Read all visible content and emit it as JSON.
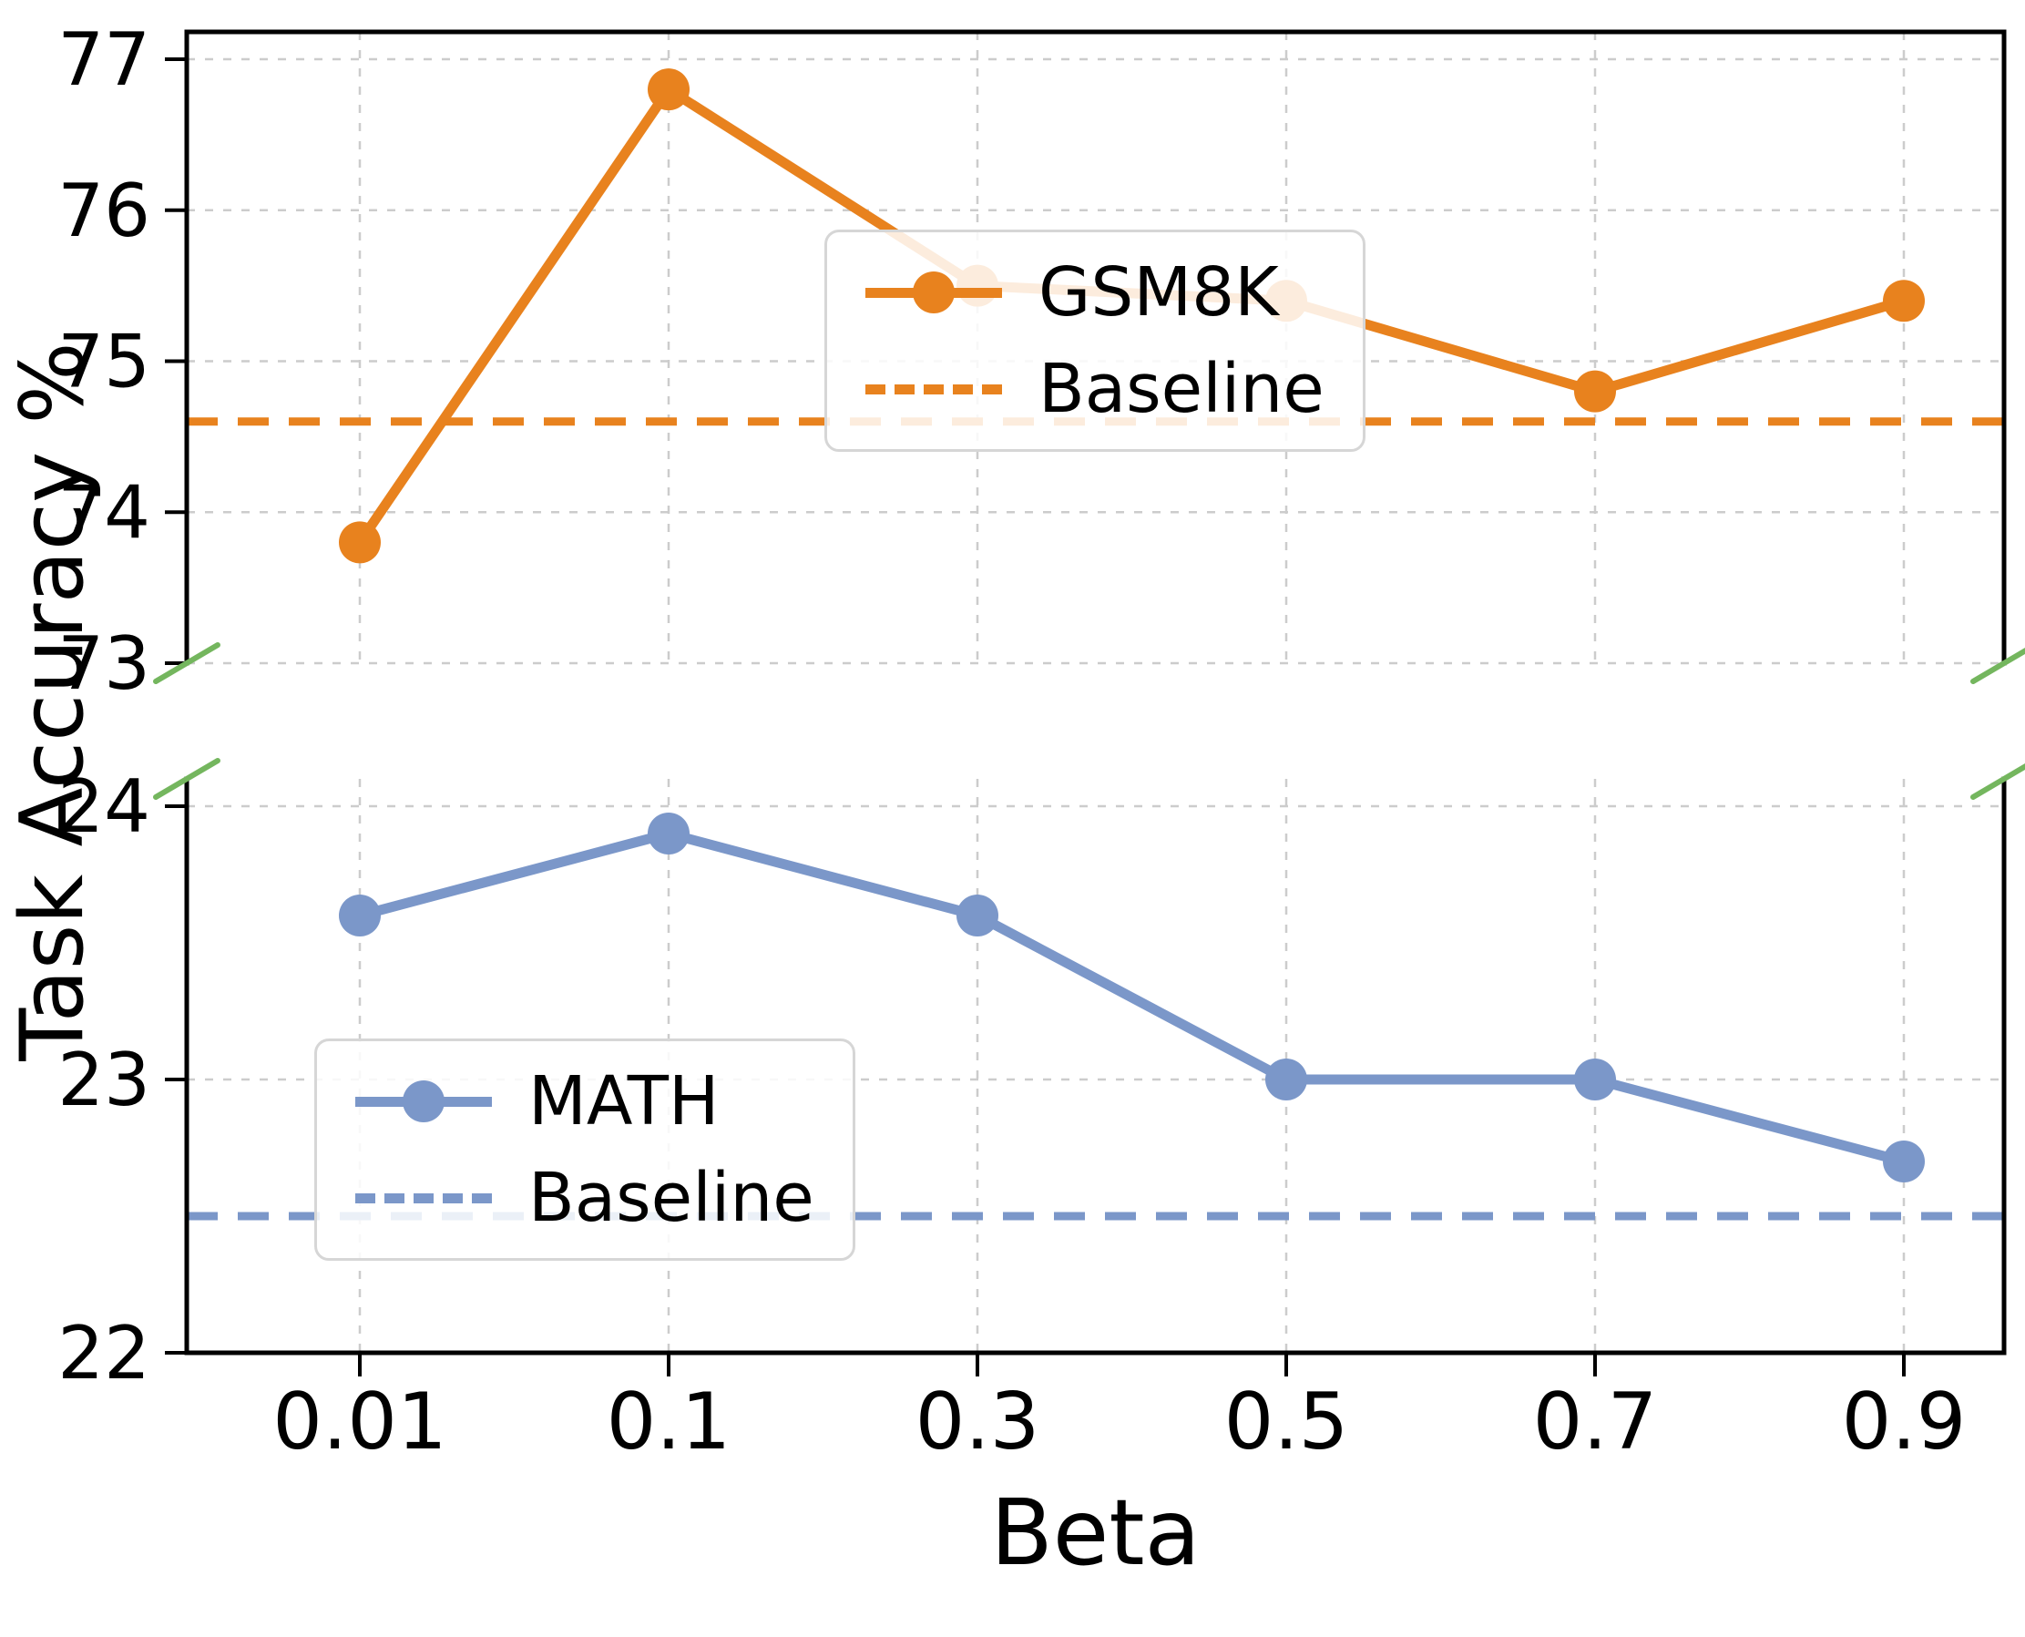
{
  "chart_data": {
    "type": "line",
    "broken_y_axis": true,
    "title": "",
    "xlabel": "Beta",
    "ylabel": "Task Accuracy %",
    "x_categories": [
      "0.01",
      "0.1",
      "0.3",
      "0.5",
      "0.7",
      "0.9"
    ],
    "grid": true,
    "break_mark_color": "#74b65e",
    "panels": [
      {
        "position": "top",
        "ylim": [
          73,
          77
        ],
        "yticks": [
          73,
          74,
          75,
          76,
          77
        ],
        "series": [
          {
            "name": "GSM8K",
            "color": "#e8821e",
            "marker": "circle",
            "values": [
              73.8,
              76.8,
              75.5,
              75.4,
              74.8,
              75.4
            ]
          }
        ],
        "baseline": {
          "label": "Baseline",
          "value": 74.6,
          "style": "dashed",
          "color": "#e8821e"
        },
        "legend_position": "upper-center"
      },
      {
        "position": "bottom",
        "ylim": [
          22,
          24
        ],
        "yticks": [
          22,
          23,
          24
        ],
        "series": [
          {
            "name": "MATH",
            "color": "#7b97c9",
            "marker": "circle",
            "values": [
              23.6,
              23.9,
              23.6,
              23.0,
              23.0,
              22.7
            ]
          }
        ],
        "baseline": {
          "label": "Baseline",
          "value": 22.5,
          "style": "dashed",
          "color": "#7b97c9"
        },
        "legend_position": "lower-left"
      }
    ]
  }
}
